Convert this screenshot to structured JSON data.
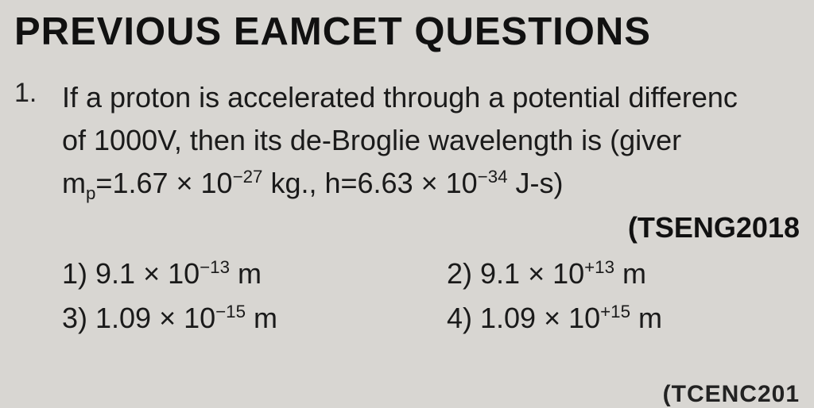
{
  "heading": "PREVIOUS EAMCET QUESTIONS",
  "question": {
    "number": "1.",
    "line1": "If a proton is accelerated through a potential differenc",
    "line2_a": "of 1000V, then its de-Broglie wavelength is (giver",
    "line3_prefix": "m",
    "line3_sub": "p",
    "line3_mid": "=1.67 × 10",
    "line3_exp1": "−27",
    "line3_mid2": " kg., h=6.63 × 10",
    "line3_exp2": "−34",
    "line3_suffix": " J-s)",
    "tag": "(TSENG2018"
  },
  "options": {
    "o1_label": "1) ",
    "o1_val": "9.1 × 10",
    "o1_exp": "−13",
    "o1_unit": " m",
    "o2_label": "2) ",
    "o2_val": "9.1 × 10",
    "o2_exp": "+13",
    "o2_unit": " m",
    "o3_label": "3) ",
    "o3_val": "1.09 × 10",
    "o3_exp": "−15",
    "o3_unit": " m",
    "o4_label": "4) ",
    "o4_val": "1.09 × 10",
    "o4_exp": "+15",
    "o4_unit": " m"
  },
  "footer": "(TCENC201"
}
